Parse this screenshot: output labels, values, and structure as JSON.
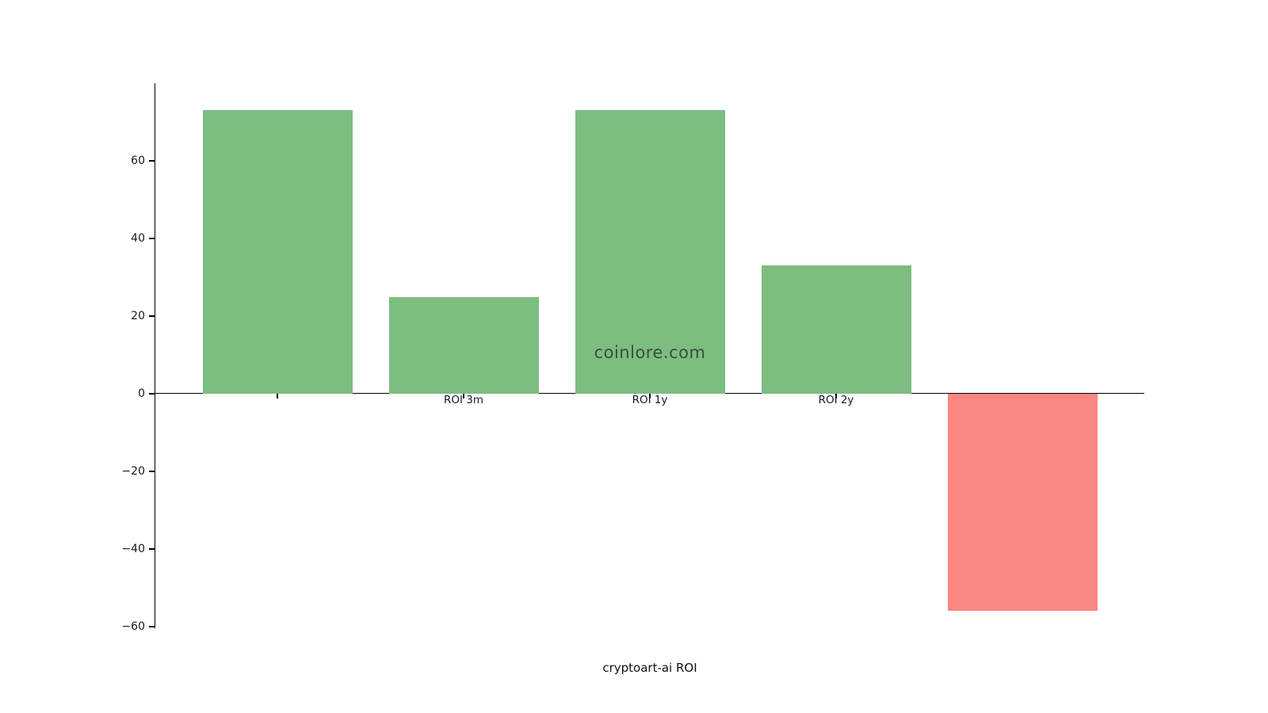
{
  "page": {
    "background": "#ffffff"
  },
  "chart_data": {
    "type": "bar",
    "title": "cryptoart-ai ROI",
    "watermark": "coinlore.com",
    "categories": [
      "",
      "ROI 3m",
      "ROI 1y",
      "ROI 2y",
      ""
    ],
    "values": [
      73,
      25,
      73,
      33,
      -56
    ],
    "bar_colors": [
      "#7dbd80",
      "#7dbd80",
      "#7dbd80",
      "#7dbd80",
      "#fb8783"
    ],
    "positive_color": "#7dbd80",
    "negative_color": "#fb8783",
    "axis_color": "#000000",
    "tick_label_color": "#1a1a1a",
    "title_color": "#111111",
    "watermark_color": "rgba(40,40,40,0.75)",
    "yticks": [
      60,
      40,
      20,
      0,
      -20,
      -40,
      -60
    ],
    "ytick_labels": [
      "60",
      "40",
      "20",
      "0",
      "−20",
      "−40",
      "−60"
    ],
    "ylim": [
      -60.5,
      80
    ],
    "xlabel": "",
    "ylabel": "",
    "grid": false,
    "legend": false
  }
}
